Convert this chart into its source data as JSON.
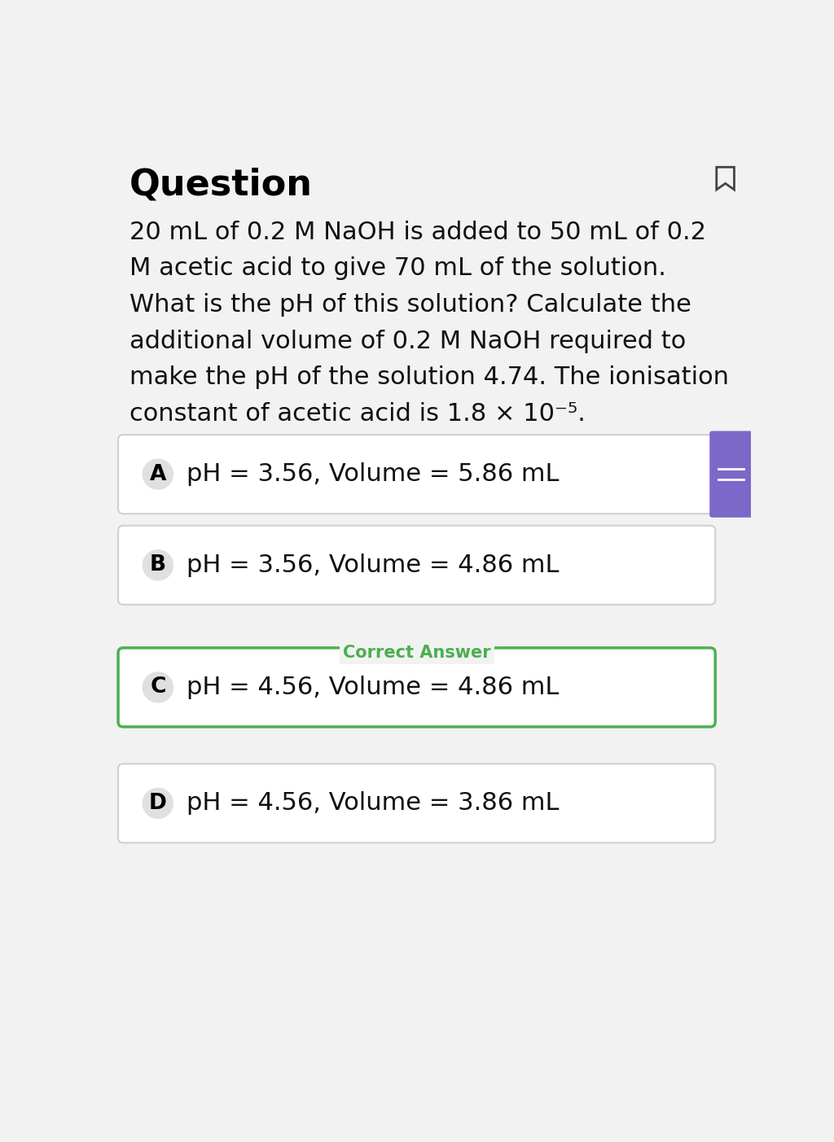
{
  "title": "Question",
  "question_lines": [
    "20 mL of 0.2 M NaOH is added to 50 mL of 0.2",
    "M acetic acid to give 70 mL of the solution.",
    "What is the pH of this solution? Calculate the",
    "additional volume of 0.2 M NaOH required to",
    "make the pH of the solution 4.74. The ionisation",
    "constant of acetic acid is 1.8 × 10⁻⁵."
  ],
  "options": [
    {
      "label": "A",
      "text": "pH = 3.56, Volume = 5.86 mL",
      "correct": false
    },
    {
      "label": "B",
      "text": "pH = 3.56, Volume = 4.86 mL",
      "correct": false
    },
    {
      "label": "C",
      "text": "pH = 4.56, Volume = 4.86 mL",
      "correct": true
    },
    {
      "label": "D",
      "text": "pH = 4.56, Volume = 3.86 mL",
      "correct": false
    }
  ],
  "correct_answer_label": "Correct Answer",
  "bg_color": "#f2f2f2",
  "card_bg_color": "#ffffff",
  "card_border_color": "#d0d0d0",
  "correct_border_color": "#4caf50",
  "correct_label_color": "#4caf50",
  "title_color": "#000000",
  "question_color": "#111111",
  "option_text_color": "#111111",
  "label_circle_color": "#e0e0e0",
  "label_text_color": "#000000",
  "purple_bar_color": "#7b68c8",
  "font_size_title": 32,
  "font_size_question": 22,
  "font_size_option": 22,
  "font_size_label": 19,
  "font_size_correct_label": 15
}
